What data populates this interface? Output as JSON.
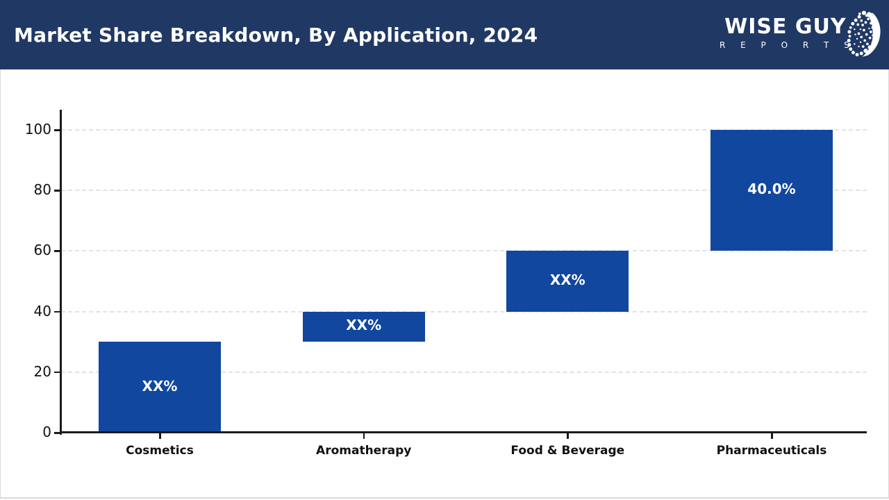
{
  "header": {
    "title": "Market Share Breakdown, By Application, 2024",
    "bg_color": "#203864"
  },
  "logo": {
    "line1": "WISE GUY",
    "line2": "R E P O R T S"
  },
  "watermark": {
    "line1": "WISE GUY",
    "line2": "R E P O R T S"
  },
  "chart_data": {
    "type": "bar",
    "subtype": "waterfall",
    "title": "Market Share Breakdown, By Application, 2024",
    "categories": [
      "Cosmetics",
      "Aromatherapy",
      "Food & Beverage",
      "Pharmaceuticals"
    ],
    "segments": [
      {
        "category": "Cosmetics",
        "start": 0,
        "end": 30,
        "label": "XX%"
      },
      {
        "category": "Aromatherapy",
        "start": 30,
        "end": 40,
        "label": "XX%"
      },
      {
        "category": "Food & Beverage",
        "start": 40,
        "end": 60,
        "label": "XX%"
      },
      {
        "category": "Pharmaceuticals",
        "start": 60,
        "end": 100,
        "label": "40.0%"
      }
    ],
    "ylim": [
      0,
      100
    ],
    "yticks": [
      0,
      20,
      40,
      60,
      80,
      100
    ],
    "xlabel": "",
    "ylabel": "",
    "grid": "horizontal-dashed",
    "legend": "none",
    "bar_color": "#11479e",
    "bar_label_color": "#ffffff",
    "axis_color": "#1a1a1a",
    "gridline_color": "#e2e2e2"
  }
}
